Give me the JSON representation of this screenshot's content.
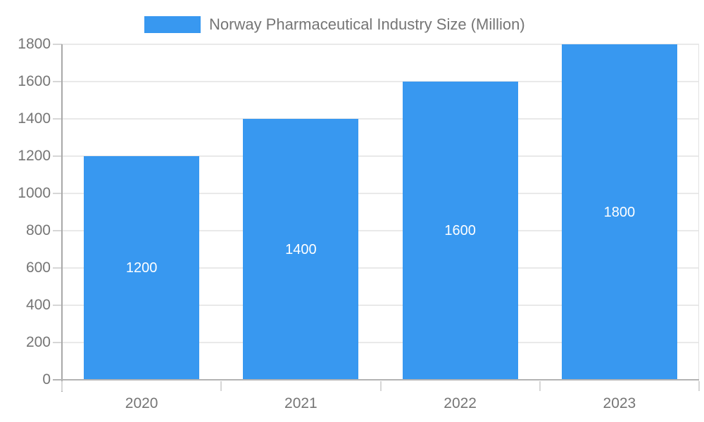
{
  "legend": {
    "label": "Norway Pharmaceutical Industry Size (Million)"
  },
  "chart_data": {
    "type": "bar",
    "title": "Norway Pharmaceutical Industry Size (Million)",
    "categories": [
      "2020",
      "2021",
      "2022",
      "2023"
    ],
    "values": [
      1200,
      1400,
      1600,
      1800
    ],
    "bar_labels": [
      "1200",
      "1400",
      "1600",
      "1800"
    ],
    "xlabel": "",
    "ylabel": "",
    "ylim": [
      0,
      1800
    ],
    "ytick_step": 200,
    "ytick_labels": [
      "0",
      "200",
      "400",
      "600",
      "800",
      "1000",
      "1200",
      "1400",
      "1600",
      "1800"
    ],
    "grid": true,
    "legend_position": "top",
    "colors": {
      "bar": "#3898F0",
      "axis_text": "#757575",
      "bar_label_text": "#ffffff",
      "gridline": "#e9e9e9",
      "axis_line": "#b3b3b3",
      "tick": "#d6d6d6"
    }
  }
}
